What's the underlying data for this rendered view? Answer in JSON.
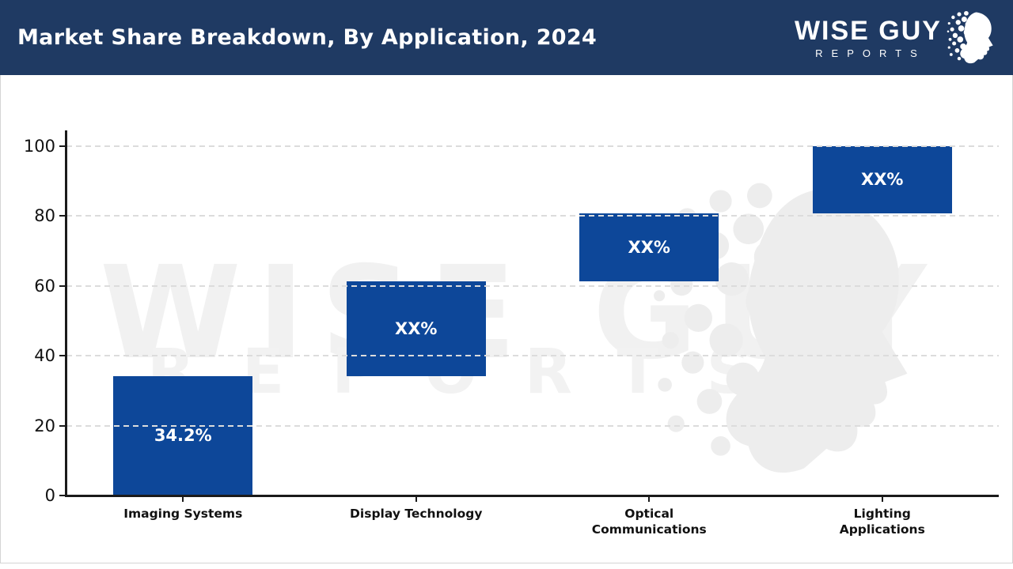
{
  "header": {
    "title": "Market Share Breakdown, By Application, 2024",
    "logo_line1": "WISE GUY",
    "logo_line2": "REPORTS"
  },
  "watermark": {
    "line1": "WISE GUY",
    "line2": "REPORTS"
  },
  "colors": {
    "header_bg": "#1f3a63",
    "bar_fill": "#0d4799",
    "bar_label_text": "#ffffff",
    "axis": "#1a1a1a",
    "gridline": "#dcdcdc",
    "watermark": "#f1f1f1"
  },
  "chart_data": {
    "type": "bar",
    "subtype": "waterfall",
    "title": "Market Share Breakdown, By Application, 2024",
    "xlabel": "",
    "ylabel": "",
    "ylim": [
      0,
      100
    ],
    "yticks": [
      0,
      20,
      40,
      60,
      80,
      100
    ],
    "ytick_labels": [
      "0",
      "20",
      "40",
      "60",
      "80",
      "100"
    ],
    "grid": "horizontal-dashed",
    "legend": "none",
    "categories": [
      "Imaging Systems",
      "Display Technology",
      "Optical Communications",
      "Lighting Applications"
    ],
    "category_lines": [
      [
        "Imaging Systems"
      ],
      [
        "Display Technology"
      ],
      [
        "Optical",
        "Communications"
      ],
      [
        "Lighting",
        "Applications"
      ]
    ],
    "bars": [
      {
        "category": "Imaging Systems",
        "start": 0,
        "end": 34.2,
        "label": "34.2%"
      },
      {
        "category": "Display Technology",
        "start": 34.2,
        "end": 61.3,
        "label": "XX%"
      },
      {
        "category": "Optical Communications",
        "start": 61.3,
        "end": 80.8,
        "label": "XX%"
      },
      {
        "category": "Lighting Applications",
        "start": 80.8,
        "end": 100,
        "label": "XX%"
      }
    ]
  }
}
